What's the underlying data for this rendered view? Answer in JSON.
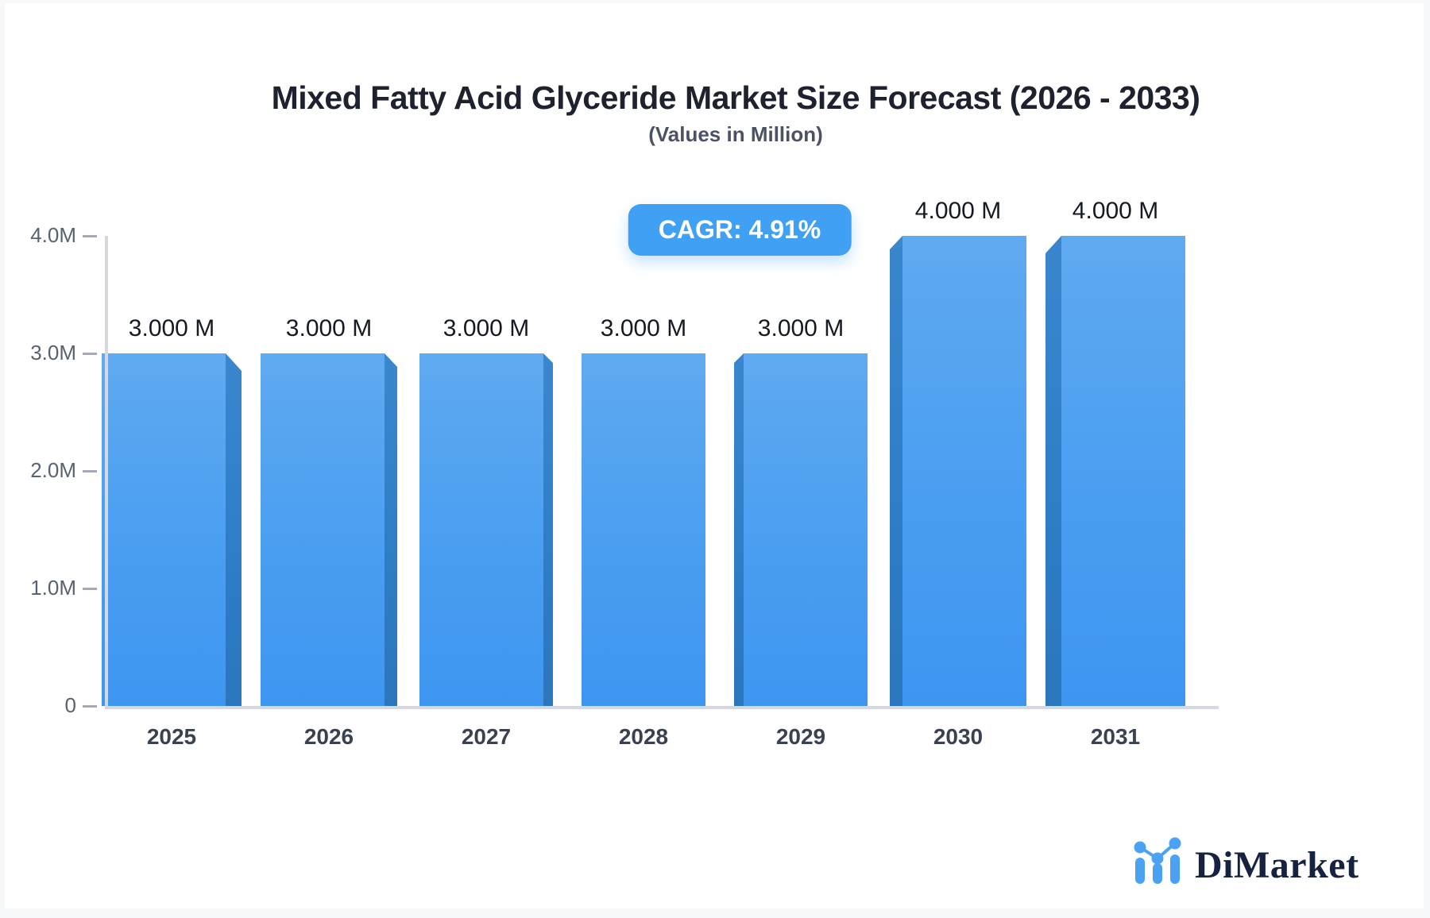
{
  "page": {
    "background_color": "#f7f8fa",
    "card_background_color": "#ffffff"
  },
  "header": {
    "title": "Mixed Fatty Acid Glyceride Market Size Forecast (2026 - 2033)",
    "subtitle": "(Values in Million)",
    "cagr_label": "CAGR: 4.91%"
  },
  "chart_data": {
    "type": "bar",
    "style": "3d-extruded-bars",
    "title": "Mixed Fatty Acid Glyceride Market Size Forecast (2026 - 2033)",
    "subtitle": "(Values in Million)",
    "unit": "Million",
    "cagr": "4.91%",
    "categories": [
      "2025",
      "2026",
      "2027",
      "2028",
      "2029",
      "2030",
      "2031"
    ],
    "values": [
      3.0,
      3.0,
      3.0,
      3.0,
      3.0,
      4.0,
      4.0
    ],
    "value_labels": [
      "3.000 M",
      "3.000 M",
      "3.000 M",
      "3.000 M",
      "3.000 M",
      "4.000 M",
      "4.000 M"
    ],
    "y_ticks": [
      "0",
      "1.0M",
      "2.0M",
      "3.0M",
      "4.0M"
    ],
    "y_tick_values": [
      0,
      1,
      2,
      3,
      4
    ],
    "ylim": [
      0,
      4
    ],
    "grid": false,
    "legend": false,
    "bar_color_top": "#60aaf0",
    "bar_color_bottom": "#3e96f1",
    "bar_side_color": "#2e7dc5",
    "axis_color": "#d5d9df",
    "tick_color": "#a5abb6",
    "badge_color": "#3fa0f4"
  },
  "footer": {
    "logo_text": "DiMarket",
    "logo_text_color": "#16223f",
    "logo_accent_color": "#4ba2f3"
  }
}
